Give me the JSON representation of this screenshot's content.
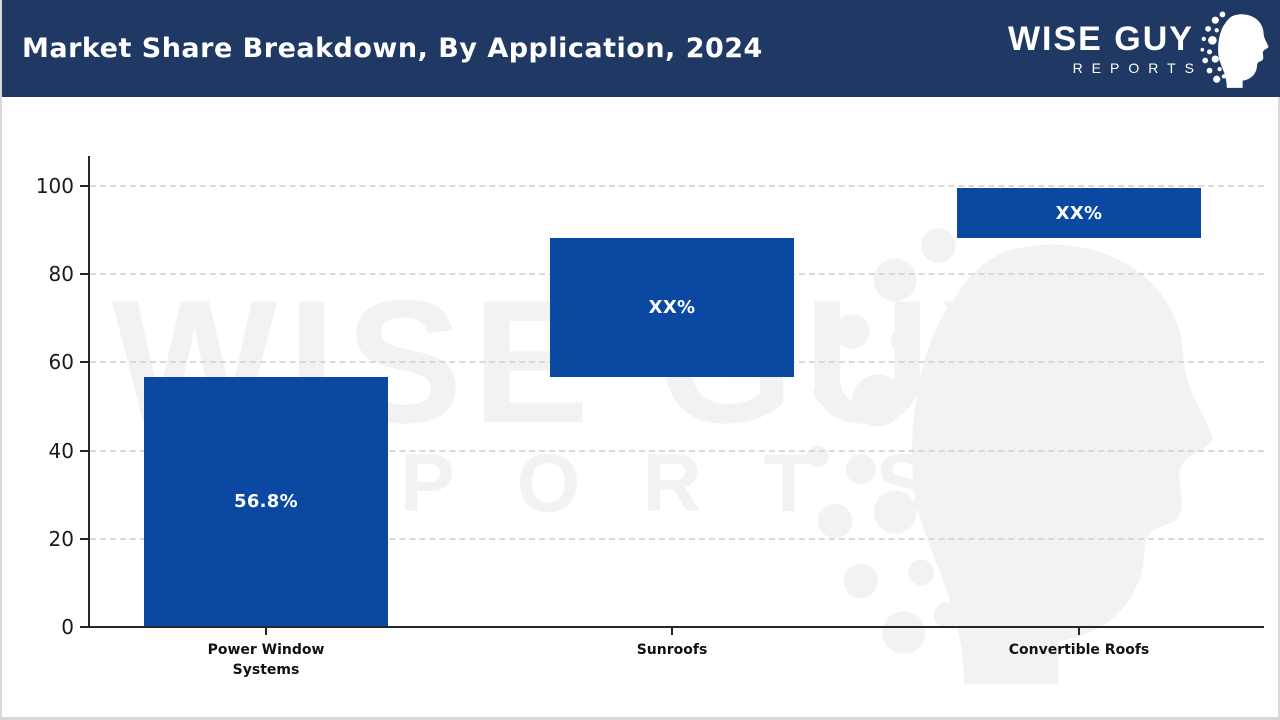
{
  "header": {
    "title": "Market Share Breakdown, By Application, 2024",
    "bg_color": "#1f3864",
    "logo": {
      "line1": "WISE GUY",
      "line2": "REPORTS",
      "face_icon": "dotted-head-profile"
    }
  },
  "watermark": {
    "line1": "WISE GUY",
    "line2": "REPORTS",
    "color": "#f2f2f4"
  },
  "chart_data": {
    "type": "bar",
    "subtype": "waterfall",
    "title": "Market Share Breakdown, By Application, 2024",
    "categories": [
      "Power Window Systems",
      "Sunroofs",
      "Convertible Roofs"
    ],
    "series": [
      {
        "name": "Market Share %",
        "segments": [
          {
            "category": "Power Window Systems",
            "start": 0,
            "end": 56.8,
            "label": "56.8%"
          },
          {
            "category": "Sunroofs",
            "start": 56.8,
            "end": 88.2,
            "label": "XX%"
          },
          {
            "category": "Convertible Roofs",
            "start": 88.2,
            "end": 99.5,
            "label": "XX%"
          }
        ]
      }
    ],
    "xlabel": "",
    "ylabel": "",
    "ylim": [
      0,
      100
    ],
    "yticks": [
      0,
      20,
      40,
      60,
      80,
      100
    ],
    "grid": "horizontal-dashed",
    "legend": "none",
    "bar_color": "#0b48a1",
    "bar_label_color": "#ffffff",
    "axis_color": "#262626",
    "grid_color": "#d9d9d9"
  }
}
